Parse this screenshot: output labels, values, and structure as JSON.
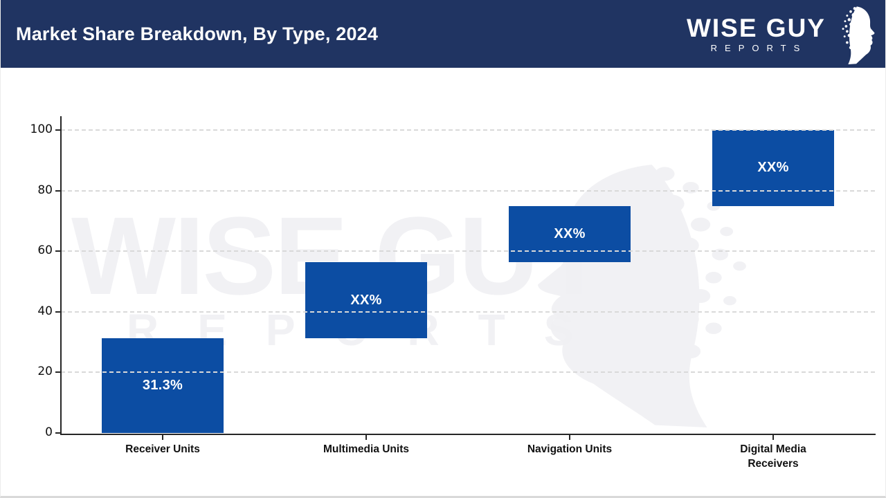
{
  "header": {
    "title": "Market Share Breakdown, By Type, 2024",
    "logo": {
      "wordmark": "WISE GUY",
      "subtext": "REPORTS"
    }
  },
  "watermark": {
    "wordmark": "WISE GUY",
    "subtext": "REPORTS"
  },
  "colors": {
    "header_bg": "#203462",
    "bar": "#0c4da3",
    "bar_label": "#ffffff",
    "grid": "#d9d9d9",
    "axis": "#262626"
  },
  "chart_data": {
    "type": "bar",
    "subtype": "waterfall",
    "title": "Market Share Breakdown, By Type, 2024",
    "categories": [
      "Receiver Units",
      "Multimedia Units",
      "Navigation Units",
      "Digital Media Receivers"
    ],
    "segments": [
      {
        "category": "Receiver Units",
        "start": 0,
        "end": 31.3,
        "label": "31.3%"
      },
      {
        "category": "Multimedia Units",
        "start": 31.3,
        "end": 56.3,
        "label": "XX%"
      },
      {
        "category": "Navigation Units",
        "start": 56.3,
        "end": 75,
        "label": "XX%"
      },
      {
        "category": "Digital Media Receivers",
        "start": 75,
        "end": 100,
        "label": "XX%"
      }
    ],
    "y_ticks": [
      0,
      20,
      40,
      60,
      80,
      100
    ],
    "ylim": [
      0,
      100
    ],
    "xlabel": "",
    "ylabel": "",
    "grid": true,
    "legend": false
  }
}
